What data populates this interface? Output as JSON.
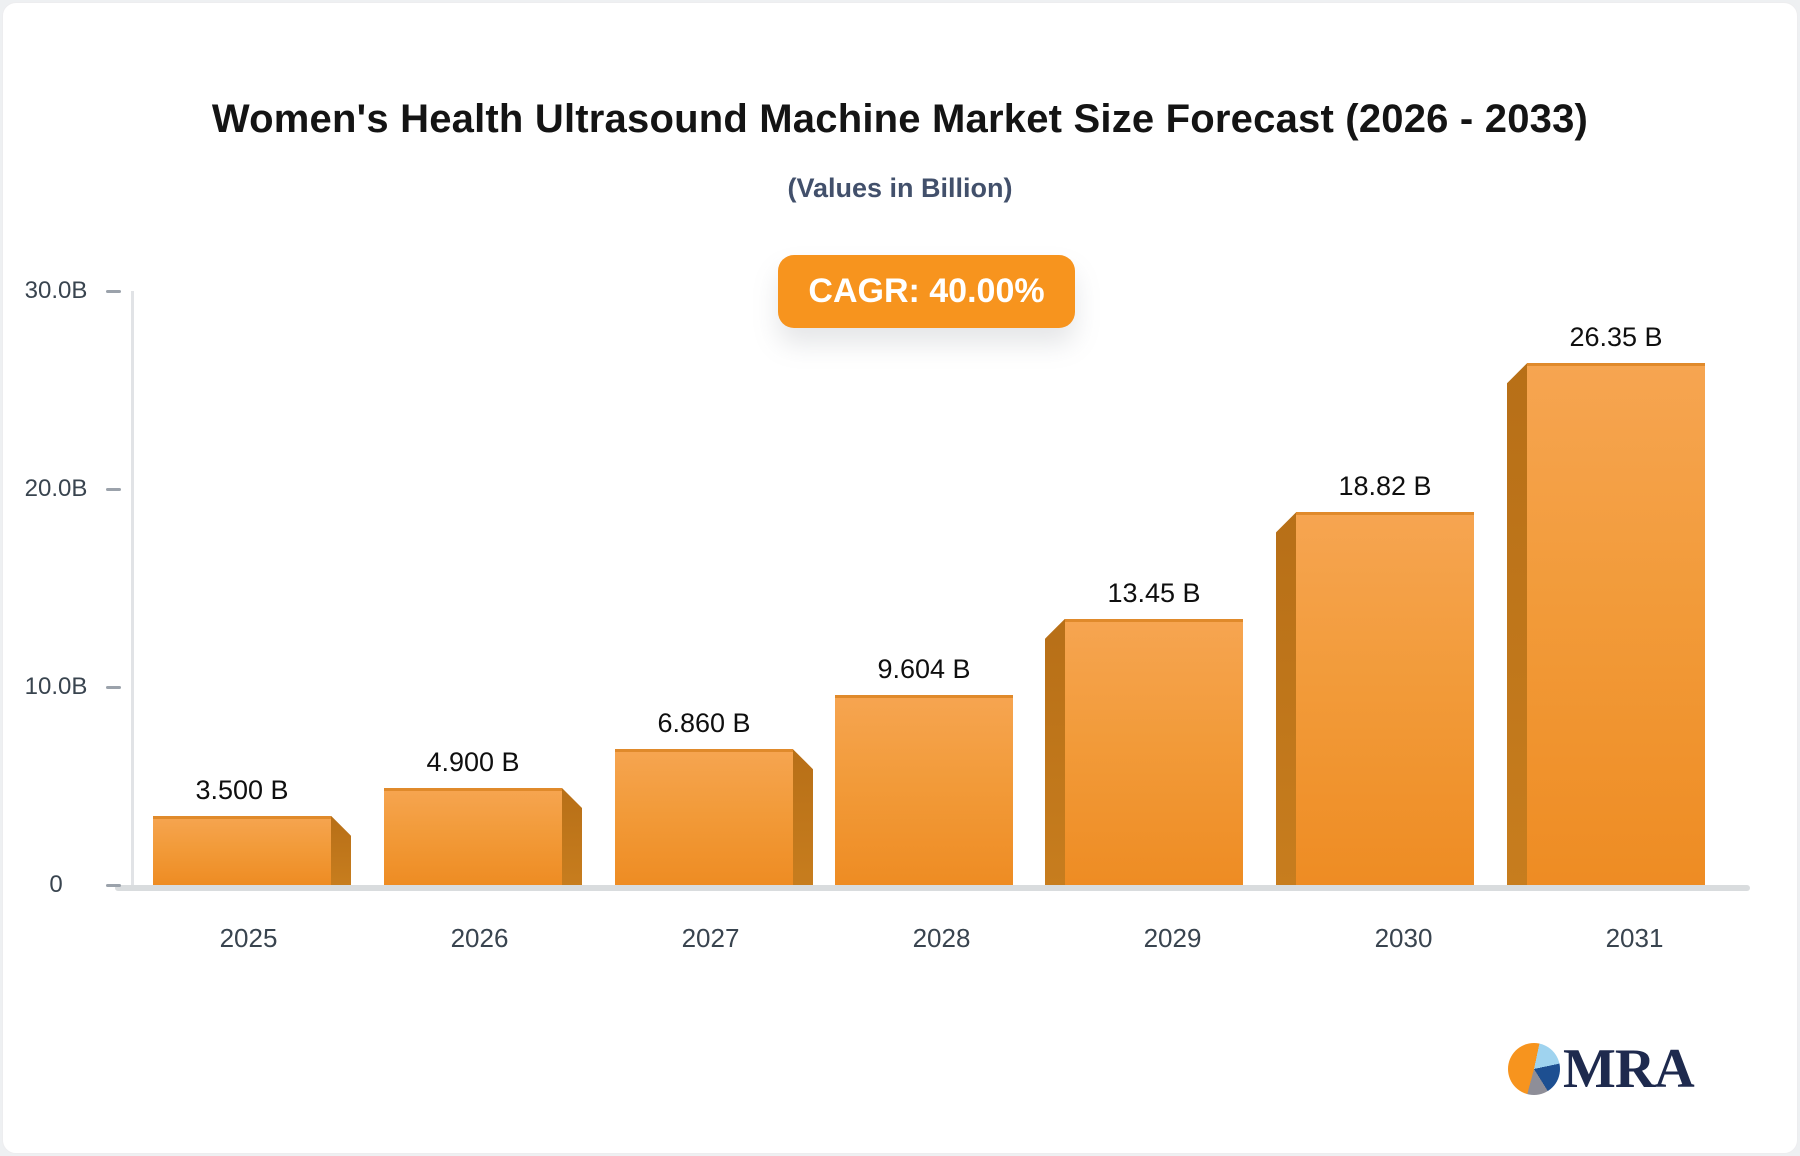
{
  "header": {
    "title": "Women's Health Ultrasound Machine Market Size Forecast (2026 - 2033)",
    "subtitle": "(Values in Billion)"
  },
  "cagr_badge": {
    "label": "CAGR: 40.00%",
    "background": "#F7941E",
    "text_color": "#FFFFFF"
  },
  "chart_data": {
    "type": "bar",
    "title": "Women's Health Ultrasound Machine Market Size Forecast (2026 - 2033)",
    "subtitle": "(Values in Billion)",
    "categories": [
      "2025",
      "2026",
      "2027",
      "2028",
      "2029",
      "2030",
      "2031"
    ],
    "values": [
      3.5,
      4.9,
      6.86,
      9.604,
      13.45,
      18.82,
      26.35
    ],
    "value_labels": [
      "3.500 B",
      "4.900 B",
      "6.860 B",
      "9.604 B",
      "13.45 B",
      "18.82 B",
      "26.35 B"
    ],
    "yticks": [
      {
        "label": "30.0B",
        "value": 30
      },
      {
        "label": "20.0B",
        "value": 20
      },
      {
        "label": "10.0B",
        "value": 10
      },
      {
        "label": "0",
        "value": 0
      }
    ],
    "ylim": [
      0,
      30
    ],
    "grid": false,
    "legend": false,
    "bar_color_top": "#F6A551",
    "bar_color_bottom": "#EE8C23",
    "bar_side_color": "#BE751D",
    "bevel_sides": [
      "right",
      "right",
      "right",
      "none",
      "left",
      "left",
      "left"
    ]
  },
  "logo": {
    "text": "MRA",
    "icon": "pie-chart-icon",
    "text_color": "#1E2A4E",
    "pie_colors": {
      "orange": "#F7941E",
      "light_blue": "#9FD3EF",
      "dark_blue": "#1D4F91",
      "gray": "#8E8E98"
    }
  }
}
